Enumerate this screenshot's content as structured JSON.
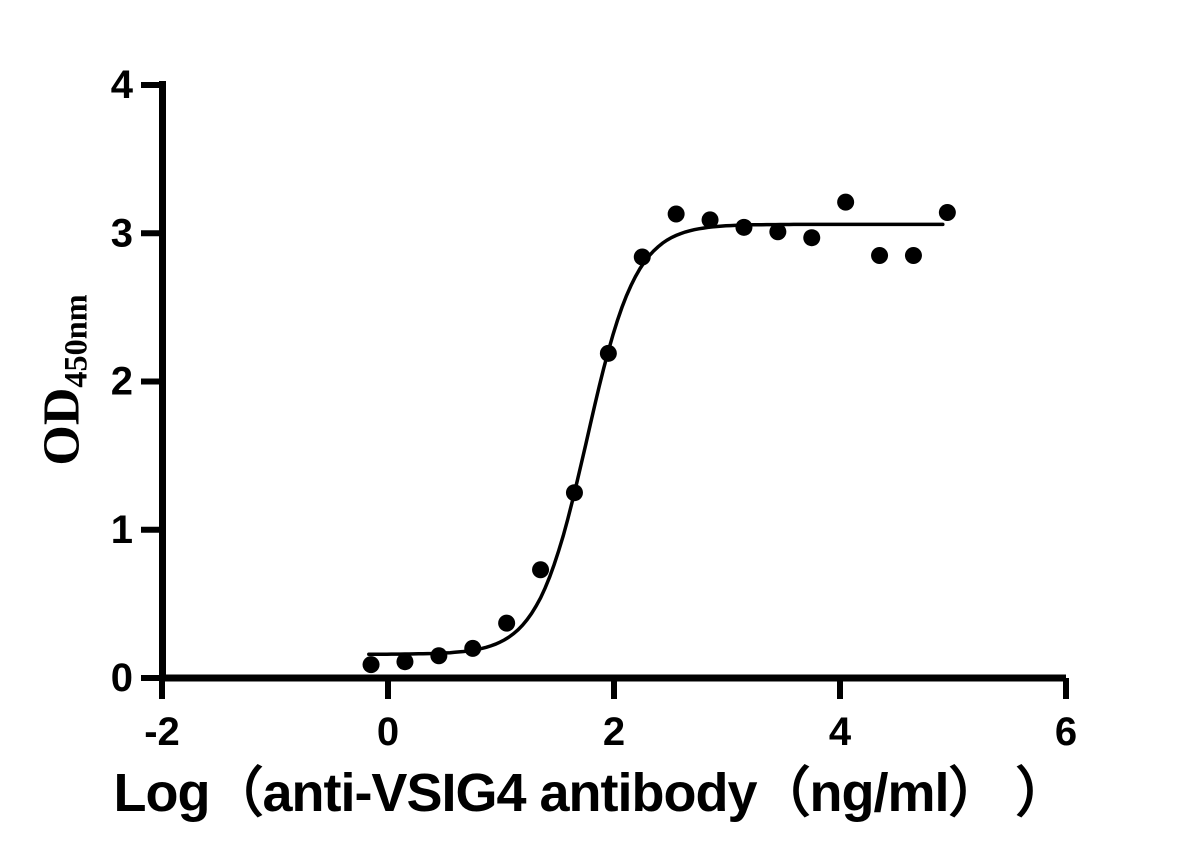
{
  "figure": {
    "background": "#ffffff",
    "axis_color": "#000000",
    "point_color": "#000000",
    "curve_color": "#000000"
  },
  "chart_data": {
    "type": "scatter",
    "title": "",
    "xlabel": "Log（anti-VSIG4 antibody（ng/ml） ）",
    "ylabel": "OD",
    "ylabel_sub": "450nm",
    "xlim": [
      -2,
      6
    ],
    "ylim": [
      0,
      4
    ],
    "x_ticks": [
      "-2",
      "0",
      "2",
      "4",
      "6"
    ],
    "y_ticks": [
      "0",
      "1",
      "2",
      "3",
      "4"
    ],
    "grid": false,
    "legend": false,
    "series": [
      {
        "name": "data_points",
        "type": "scatter",
        "points": [
          [
            -0.15,
            0.09
          ],
          [
            0.15,
            0.11
          ],
          [
            0.45,
            0.15
          ],
          [
            0.75,
            0.2
          ],
          [
            1.05,
            0.37
          ],
          [
            1.35,
            0.73
          ],
          [
            1.65,
            1.25
          ],
          [
            1.95,
            2.19
          ],
          [
            2.25,
            2.84
          ],
          [
            2.55,
            3.13
          ],
          [
            2.85,
            3.09
          ],
          [
            3.15,
            3.04
          ],
          [
            3.45,
            3.01
          ],
          [
            3.75,
            2.97
          ],
          [
            4.05,
            3.21
          ],
          [
            4.35,
            2.85
          ],
          [
            4.65,
            2.85
          ],
          [
            4.95,
            3.14
          ]
        ]
      },
      {
        "name": "fitted_curve",
        "type": "line",
        "fit": {
          "model": "4PL_logistic",
          "bottom": 0.16,
          "top": 3.06,
          "log_ec50": 1.76,
          "hill_slope": 2.0,
          "x_start": -0.17,
          "x_end": 4.94
        }
      }
    ]
  }
}
